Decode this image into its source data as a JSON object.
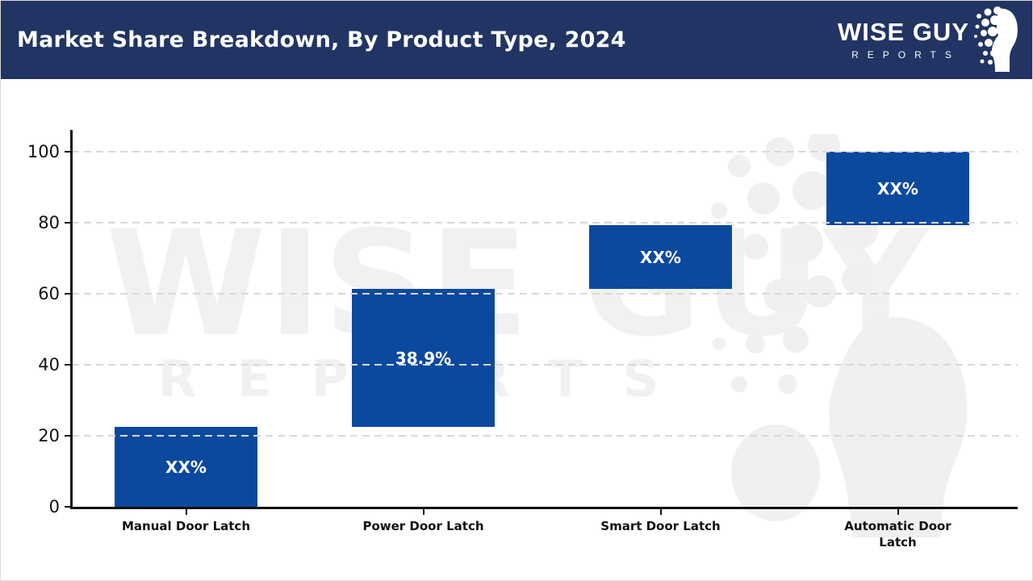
{
  "header": {
    "title": "Market Share Breakdown, By Product Type, 2024"
  },
  "logo": {
    "name": "WISE GUY",
    "subtitle": "REPORTS"
  },
  "watermark": {
    "line1": "WISE GUY",
    "line2": "REPORTS"
  },
  "colors": {
    "header_background": "#213463",
    "bar_blue": "#0b499e",
    "grid_gray": "#d8d8d8",
    "axis_black": "#111111",
    "watermark_gray": "#f1f1f1",
    "value_label_white": "#ffffff"
  },
  "chart_data": {
    "type": "bar",
    "subtype": "waterfall",
    "title": "Market Share Breakdown, By Product Type, 2024",
    "xlabel": "",
    "ylabel": "",
    "categories": [
      "Manual Door Latch",
      "Power Door Latch",
      "Smart Door Latch",
      "Automatic Door Latch"
    ],
    "segments": [
      {
        "category": "Manual Door Latch",
        "start": 0,
        "end": 22.4,
        "value": 22.4,
        "label": "XX%"
      },
      {
        "category": "Power Door Latch",
        "start": 22.4,
        "end": 61.3,
        "value": 38.9,
        "label": "38.9%"
      },
      {
        "category": "Smart Door Latch",
        "start": 61.3,
        "end": 79.3,
        "value": 18.0,
        "label": "XX%"
      },
      {
        "category": "Automatic Door Latch",
        "start": 79.3,
        "end": 100,
        "value": 20.7,
        "label": "XX%"
      }
    ],
    "ylim": [
      0,
      106
    ],
    "yticks": [
      0,
      20,
      40,
      60,
      80,
      100
    ],
    "grid": "horizontal dashed, drawn above bars",
    "legend": "none",
    "bar_color": "#0b499e",
    "label_color": "#ffffff"
  }
}
